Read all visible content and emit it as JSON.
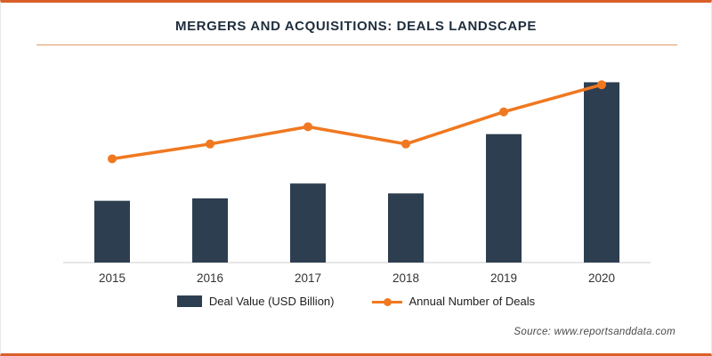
{
  "page": {
    "title": "MERGERS AND ACQUISITIONS: DEALS LANDSCAPE",
    "source_note": "Source: www.reportsanddata.com"
  },
  "colors": {
    "accent_border": "#d95f29",
    "bar": "#2d3e50",
    "line": "#f07820",
    "axis": "#cccccc",
    "tick_label": "#333333"
  },
  "chart_data": {
    "type": "bar",
    "subtype": "bar-with-line-overlay",
    "title": "MERGERS AND ACQUISITIONS: DEALS LANDSCAPE",
    "categories": [
      "2015",
      "2016",
      "2017",
      "2018",
      "2019",
      "2020"
    ],
    "series": [
      {
        "name": "Deal Value (USD Billion)",
        "type": "bar",
        "values": [
          25,
          26,
          32,
          28,
          52,
          73
        ]
      },
      {
        "name": "Annual Number of Deals",
        "type": "line",
        "values": [
          42,
          48,
          55,
          48,
          61,
          72
        ]
      }
    ],
    "xlabel": "",
    "ylabel": "",
    "ylim": [
      0,
      80
    ],
    "grid": false,
    "y_axis_labels_visible": false,
    "legend_position": "bottom"
  }
}
